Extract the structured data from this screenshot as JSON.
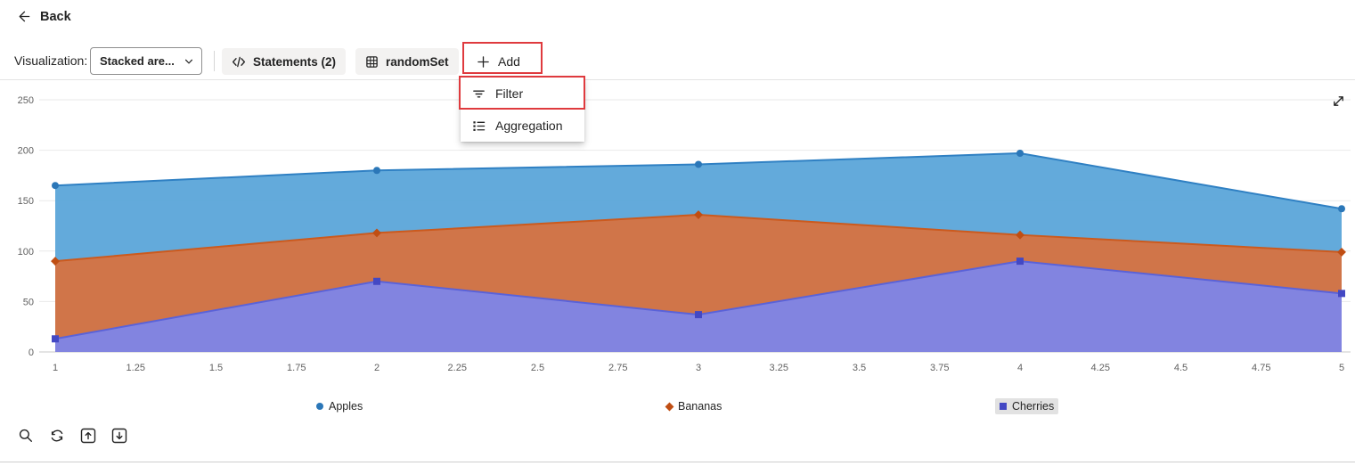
{
  "header": {
    "back_label": "Back"
  },
  "toolbar": {
    "visualization_label": "Visualization:",
    "visualization_value": "Stacked are...",
    "statements_label": "Statements (2)",
    "dataset_label": "randomSet",
    "add_label": "Add"
  },
  "add_menu": {
    "items": [
      {
        "label": "Filter",
        "icon": "filter-icon",
        "highlighted": true
      },
      {
        "label": "Aggregation",
        "icon": "aggregation-icon",
        "highlighted": false
      }
    ]
  },
  "annotations": {
    "highlight_color": "#df3a3e",
    "highlighted_elements": [
      "add-button",
      "filter-menu-item"
    ]
  },
  "legend": [
    {
      "label": "Apples",
      "color": "#2b77b8",
      "shape": "circle",
      "highlighted": false
    },
    {
      "label": "Bananas",
      "color": "#c04e13",
      "shape": "diamond",
      "highlighted": false
    },
    {
      "label": "Cherries",
      "color": "#4348c4",
      "shape": "square",
      "highlighted": true
    }
  ],
  "chart_data": {
    "type": "area",
    "title": "",
    "xlabel": "",
    "ylabel": "",
    "x": [
      1,
      2,
      3,
      4,
      5
    ],
    "series": [
      {
        "name": "Apples",
        "values": [
          165,
          180,
          186,
          197,
          142
        ],
        "fill": "#57a4d8",
        "line": "#2f80c3",
        "marker": "circle",
        "marker_color": "#2b77b8"
      },
      {
        "name": "Bananas",
        "values": [
          90,
          118,
          136,
          116,
          99
        ],
        "fill": "#d8713d",
        "line": "#cb5a1e",
        "marker": "diamond",
        "marker_color": "#c04e13"
      },
      {
        "name": "Cherries",
        "values": [
          13,
          70,
          37,
          90,
          58
        ],
        "fill": "#7c85ec",
        "line": "#5a62d8",
        "marker": "square",
        "marker_color": "#4348c4"
      }
    ],
    "xlim": [
      1,
      5
    ],
    "ylim": [
      0,
      250
    ],
    "y_ticks": [
      0,
      50,
      100,
      150,
      200,
      250
    ],
    "x_tick_labels": [
      "1",
      "1.25",
      "1.5",
      "1.75",
      "2",
      "2.25",
      "2.5",
      "2.75",
      "3",
      "3.25",
      "3.5",
      "3.75",
      "4",
      "4.25",
      "4.5",
      "4.75",
      "5"
    ],
    "grid": true,
    "legend_position": "bottom",
    "areas_from_zero_baseline": true
  },
  "chart_actions": [
    {
      "icon": "zoom-icon"
    },
    {
      "icon": "refresh-icon"
    },
    {
      "icon": "arrow-up-box-icon"
    },
    {
      "icon": "arrow-down-box-icon"
    }
  ],
  "expand_icon": "expand-diagonal-icon"
}
